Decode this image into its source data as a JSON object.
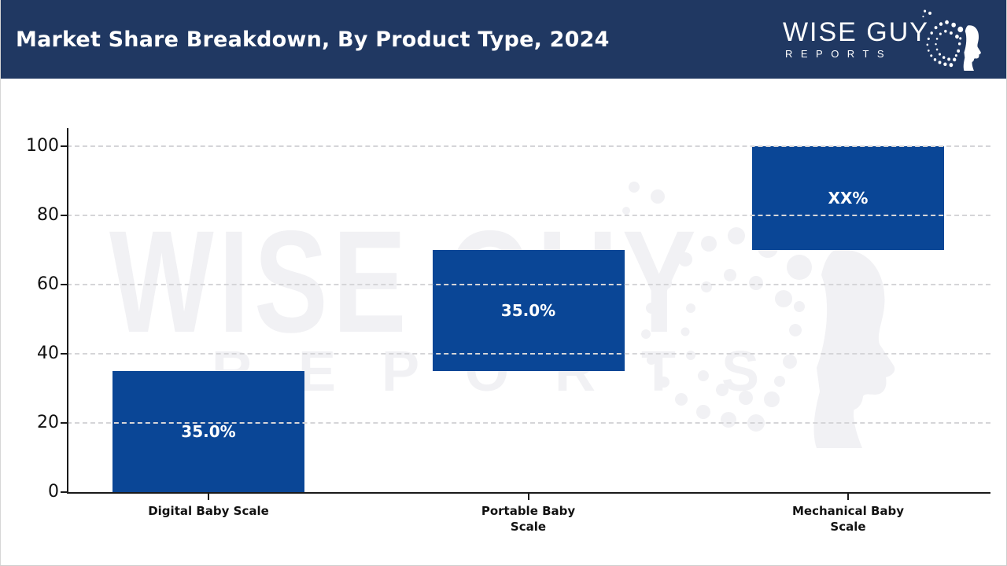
{
  "header": {
    "title": "Market Share Breakdown, By Product Type, 2024"
  },
  "logo": {
    "name": "WISE GUY",
    "sub": "REPORTS"
  },
  "watermark": {
    "name": "WISE GUY",
    "sub": "REPORTS"
  },
  "chart_data": {
    "type": "bar",
    "variant": "floating stacked segments (waterfall-style market share)",
    "title": "Market Share Breakdown, By Product Type, 2024",
    "categories": [
      "Digital Baby Scale",
      "Portable Baby Scale",
      "Mechanical Baby Scale"
    ],
    "categories_lines": [
      [
        "Digital Baby Scale"
      ],
      [
        "Portable Baby",
        "Scale"
      ],
      [
        "Mechanical Baby",
        "Scale"
      ]
    ],
    "series": [
      {
        "name": "Market share %",
        "segments": [
          {
            "category": "Digital Baby Scale",
            "start": 0,
            "end": 35,
            "label": "35.0%"
          },
          {
            "category": "Portable Baby Scale",
            "start": 35,
            "end": 70,
            "label": "35.0%"
          },
          {
            "category": "Mechanical Baby Scale",
            "start": 70,
            "end": 100,
            "label": "XX%"
          }
        ]
      }
    ],
    "yticks": [
      0,
      20,
      40,
      60,
      80,
      100
    ],
    "ylim": [
      0,
      105
    ],
    "xlabel": "",
    "ylabel": "",
    "grid": "horizontal dashed, drawn over bars",
    "legend": "none"
  },
  "colors": {
    "header_bg": "#203862",
    "bar": "#0a4696",
    "bar_value_label": "#ffffff",
    "grid": "#d5d5d8",
    "axis": "#1a1a1a",
    "watermark": "#f1f1f4"
  }
}
